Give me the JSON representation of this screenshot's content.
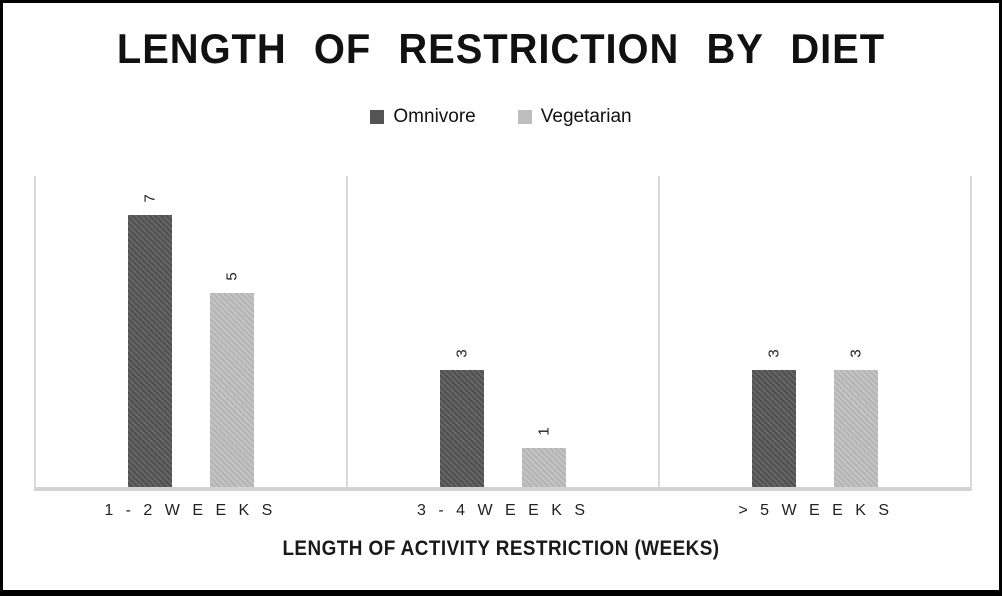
{
  "chart_data": {
    "type": "bar",
    "title": "LENGTH OF RESTRICTION BY DIET",
    "categories": [
      "1 - 2  W E E K S",
      "3 - 4  W E E K S",
      ">  5  W E E K S"
    ],
    "categories_plain": [
      "1-2 WEEKS",
      "3-4 WEEKS",
      "> 5 WEEKS"
    ],
    "series": [
      {
        "name": "Omnivore",
        "values": [
          7,
          3,
          3
        ],
        "color": "#545454"
      },
      {
        "name": "Vegetarian",
        "values": [
          5,
          1,
          3
        ],
        "color": "#bebebe"
      }
    ],
    "xlabel": "LENGTH OF ACTIVITY RESTRICTION (WEEKS)",
    "ylabel": "",
    "ylim": [
      0,
      8
    ],
    "data_labels": [
      [
        "7",
        "5"
      ],
      [
        "3",
        "1"
      ],
      [
        "3",
        "3"
      ]
    ],
    "data_label_rotation": -90,
    "legend_position": "top",
    "grid": "vertical-category-separators",
    "grid_color": "#d9d9d9",
    "axis_line_color": "#d3d3d3",
    "background": "#ffffff",
    "border_color": "#000000"
  }
}
